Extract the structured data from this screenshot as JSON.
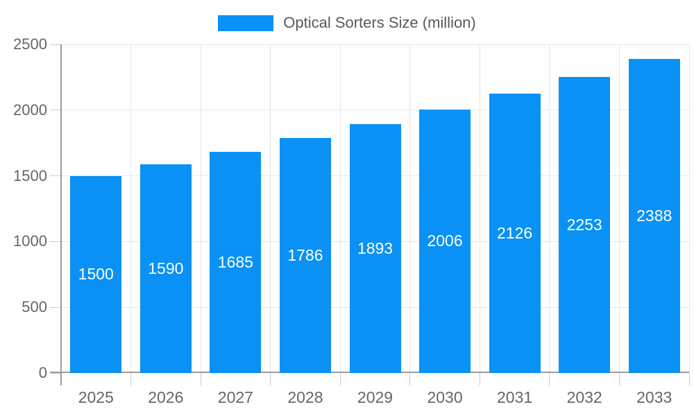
{
  "chart_data": {
    "type": "bar",
    "title": "Optical Sorters Size (million)",
    "legend": {
      "label": "Optical Sorters Size (million)",
      "position": "top"
    },
    "categories": [
      "2025",
      "2026",
      "2027",
      "2028",
      "2029",
      "2030",
      "2031",
      "2032",
      "2033"
    ],
    "series": [
      {
        "name": "Optical Sorters Size (million)",
        "values": [
          1500,
          1590,
          1685,
          1786,
          1893,
          2006,
          2126,
          2253,
          2388
        ]
      }
    ],
    "xlabel": "",
    "ylabel": "",
    "ylim": [
      0,
      2500
    ],
    "y_ticks": [
      0,
      500,
      1000,
      1500,
      2000,
      2500
    ],
    "grid": true,
    "bar_value_labels": "centered-white"
  },
  "colors": {
    "bar": "#0991f5",
    "grid": "#e6e6e6",
    "axis": "#9a9a9a",
    "tick": "#c9c9c9",
    "label": "#666666",
    "legend_text": "#595959",
    "bar_label": "#ffffff",
    "background": "#ffffff"
  }
}
